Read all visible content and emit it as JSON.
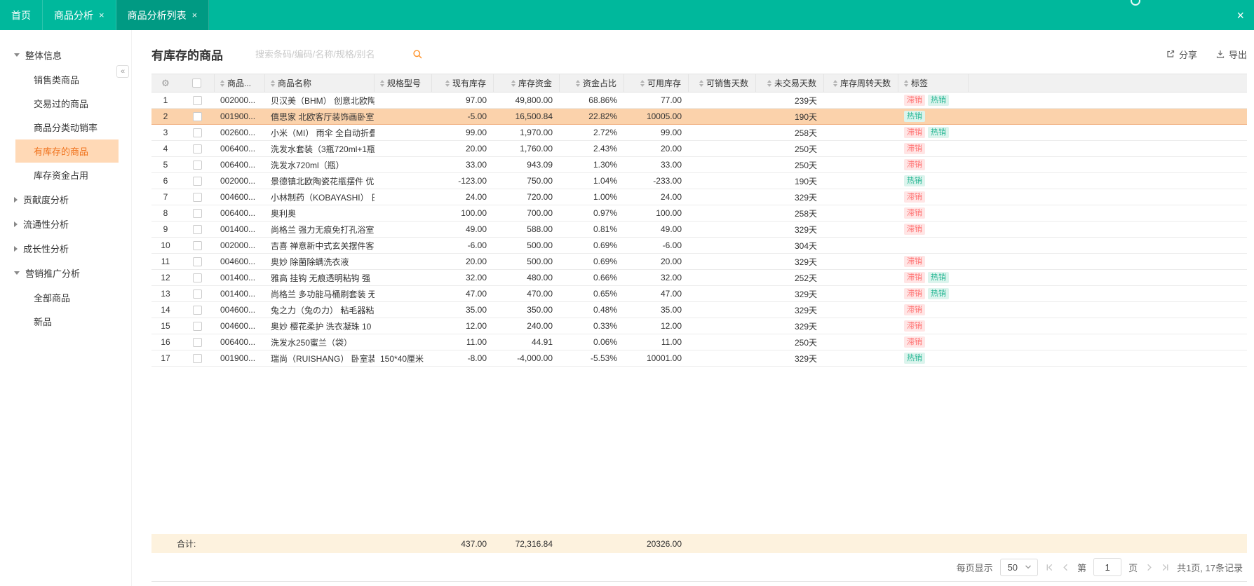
{
  "colors": {
    "accent": "#00b89c",
    "header-bg": "#f1f1f1",
    "sidebar-active-bg": "#ffd9b6",
    "active-text": "#f0711a",
    "row-selected-bg": "#fbd2ab",
    "summary-bg": "#fdf2de",
    "tag-stale-bg": "#ffe5e5",
    "tag-stale-text": "#ff7070",
    "tag-hot-bg": "#dcf4ed",
    "tag-hot-text": "#29b795",
    "search-icon": "#ff9228"
  },
  "icons": {
    "gear": "⚙"
  },
  "topbar": {
    "tabs": [
      {
        "label": "首页",
        "closable": false,
        "active": false
      },
      {
        "label": "商品分析",
        "closable": true,
        "active": false
      },
      {
        "label": "商品分析列表",
        "closable": true,
        "active": true
      }
    ],
    "tab_close": "×",
    "close_all": "×"
  },
  "sidebar": {
    "collapse_label": "«",
    "groups": [
      {
        "label": "整体信息",
        "expanded": true,
        "children": [
          {
            "label": "销售类商品",
            "active": false
          },
          {
            "label": "交易过的商品",
            "active": false
          },
          {
            "label": "商品分类动销率",
            "active": false
          },
          {
            "label": "有库存的商品",
            "active": true
          },
          {
            "label": "库存资金占用",
            "active": false
          }
        ]
      },
      {
        "label": "贡献度分析",
        "expanded": false,
        "children": []
      },
      {
        "label": "流通性分析",
        "expanded": false,
        "children": []
      },
      {
        "label": "成长性分析",
        "expanded": false,
        "children": []
      },
      {
        "label": "营销推广分析",
        "expanded": true,
        "children": [
          {
            "label": "全部商品",
            "active": false
          },
          {
            "label": "新品",
            "active": false
          }
        ]
      }
    ]
  },
  "main": {
    "title": "有库存的商品",
    "search_placeholder": "搜索条码/编码/名称/规格/别名",
    "share_label": "分享",
    "export_label": "导出"
  },
  "table": {
    "columns": [
      "商品...",
      "商品名称",
      "规格型号",
      "现有库存",
      "库存资金",
      "资金占比",
      "可用库存",
      "可销售天数",
      "未交易天数",
      "库存周转天数",
      "标签"
    ],
    "tag_types": {
      "滞销": "stale",
      "热销": "hot"
    },
    "rows": [
      {
        "index": "1",
        "code": "002000...",
        "name": "贝汉美（BHM） 创意北欧陶瓷",
        "spec": "",
        "stock": "97.00",
        "funds": "49,800.00",
        "ratio": "68.86%",
        "available": "77.00",
        "sell_days": "",
        "no_trade_days": "239天",
        "turnover_days": "",
        "tags": [
          "滞销",
          "热销"
        ],
        "selected": false
      },
      {
        "index": "2",
        "code": "001900...",
        "name": "僖思家 北欧客厅装饰画卧室",
        "spec": "",
        "stock": "-5.00",
        "funds": "16,500.84",
        "ratio": "22.82%",
        "available": "10005.00",
        "sell_days": "",
        "no_trade_days": "190天",
        "turnover_days": "",
        "tags": [
          "热销"
        ],
        "selected": true
      },
      {
        "index": "3",
        "code": "002600...",
        "name": "小米（MI） 雨伞 全自动折叠",
        "spec": "",
        "stock": "99.00",
        "funds": "1,970.00",
        "ratio": "2.72%",
        "available": "99.00",
        "sell_days": "",
        "no_trade_days": "258天",
        "turnover_days": "",
        "tags": [
          "滞销",
          "热销"
        ],
        "selected": false
      },
      {
        "index": "4",
        "code": "006400...",
        "name": "洗发水套装（3瓶720ml+1瓶",
        "spec": "",
        "stock": "20.00",
        "funds": "1,760.00",
        "ratio": "2.43%",
        "available": "20.00",
        "sell_days": "",
        "no_trade_days": "250天",
        "turnover_days": "",
        "tags": [
          "滞销"
        ],
        "selected": false
      },
      {
        "index": "5",
        "code": "006400...",
        "name": "洗发水720ml（瓶）",
        "spec": "",
        "stock": "33.00",
        "funds": "943.09",
        "ratio": "1.30%",
        "available": "33.00",
        "sell_days": "",
        "no_trade_days": "250天",
        "turnover_days": "",
        "tags": [
          "滞销"
        ],
        "selected": false
      },
      {
        "index": "6",
        "code": "002000...",
        "name": "景德镇北欧陶瓷花瓶摆件 优",
        "spec": "",
        "stock": "-123.00",
        "funds": "750.00",
        "ratio": "1.04%",
        "available": "-233.00",
        "sell_days": "",
        "no_trade_days": "190天",
        "turnover_days": "",
        "tags": [
          "热销"
        ],
        "selected": false
      },
      {
        "index": "7",
        "code": "004600...",
        "name": "小林制药（KOBAYASHI） 日",
        "spec": "",
        "stock": "24.00",
        "funds": "720.00",
        "ratio": "1.00%",
        "available": "24.00",
        "sell_days": "",
        "no_trade_days": "329天",
        "turnover_days": "",
        "tags": [
          "滞销"
        ],
        "selected": false
      },
      {
        "index": "8",
        "code": "006400...",
        "name": "奥利奥",
        "spec": "",
        "stock": "100.00",
        "funds": "700.00",
        "ratio": "0.97%",
        "available": "100.00",
        "sell_days": "",
        "no_trade_days": "258天",
        "turnover_days": "",
        "tags": [
          "滞销"
        ],
        "selected": false
      },
      {
        "index": "9",
        "code": "001400...",
        "name": "尚格兰 强力无痕免打孔浴室",
        "spec": "",
        "stock": "49.00",
        "funds": "588.00",
        "ratio": "0.81%",
        "available": "49.00",
        "sell_days": "",
        "no_trade_days": "329天",
        "turnover_days": "",
        "tags": [
          "滞销"
        ],
        "selected": false
      },
      {
        "index": "10",
        "code": "002000...",
        "name": "吉喜 禅意新中式玄关摆件客",
        "spec": "",
        "stock": "-6.00",
        "funds": "500.00",
        "ratio": "0.69%",
        "available": "-6.00",
        "sell_days": "",
        "no_trade_days": "304天",
        "turnover_days": "",
        "tags": [],
        "selected": false
      },
      {
        "index": "11",
        "code": "004600...",
        "name": "奥妙 除菌除螨洗衣液",
        "spec": "",
        "stock": "20.00",
        "funds": "500.00",
        "ratio": "0.69%",
        "available": "20.00",
        "sell_days": "",
        "no_trade_days": "329天",
        "turnover_days": "",
        "tags": [
          "滞销"
        ],
        "selected": false
      },
      {
        "index": "12",
        "code": "001400...",
        "name": "雅高 挂钩 无痕透明粘钩 强",
        "spec": "",
        "stock": "32.00",
        "funds": "480.00",
        "ratio": "0.66%",
        "available": "32.00",
        "sell_days": "",
        "no_trade_days": "252天",
        "turnover_days": "",
        "tags": [
          "滞销",
          "热销"
        ],
        "selected": false
      },
      {
        "index": "13",
        "code": "001400...",
        "name": "尚格兰 多功能马桶刷套装 无",
        "spec": "",
        "stock": "47.00",
        "funds": "470.00",
        "ratio": "0.65%",
        "available": "47.00",
        "sell_days": "",
        "no_trade_days": "329天",
        "turnover_days": "",
        "tags": [
          "滞销",
          "热销"
        ],
        "selected": false
      },
      {
        "index": "14",
        "code": "004600...",
        "name": "兔之力（兔の力） 粘毛器粘",
        "spec": "",
        "stock": "35.00",
        "funds": "350.00",
        "ratio": "0.48%",
        "available": "35.00",
        "sell_days": "",
        "no_trade_days": "329天",
        "turnover_days": "",
        "tags": [
          "滞销"
        ],
        "selected": false
      },
      {
        "index": "15",
        "code": "004600...",
        "name": "奥妙 樱花柔护 洗衣凝珠 10",
        "spec": "",
        "stock": "12.00",
        "funds": "240.00",
        "ratio": "0.33%",
        "available": "12.00",
        "sell_days": "",
        "no_trade_days": "329天",
        "turnover_days": "",
        "tags": [
          "滞销"
        ],
        "selected": false
      },
      {
        "index": "16",
        "code": "006400...",
        "name": "洗发水250蜜兰（袋）",
        "spec": "",
        "stock": "11.00",
        "funds": "44.91",
        "ratio": "0.06%",
        "available": "11.00",
        "sell_days": "",
        "no_trade_days": "250天",
        "turnover_days": "",
        "tags": [
          "滞销"
        ],
        "selected": false
      },
      {
        "index": "17",
        "code": "001900...",
        "name": "瑞尚（RUISHANG） 卧室装",
        "spec": "150*40厘米",
        "stock": "-8.00",
        "funds": "-4,000.00",
        "ratio": "-5.53%",
        "available": "10001.00",
        "sell_days": "",
        "no_trade_days": "329天",
        "turnover_days": "",
        "tags": [
          "热销"
        ],
        "selected": false
      }
    ]
  },
  "summary": {
    "label": "合计:",
    "current_stock": "437.00",
    "stock_funds": "72,316.84",
    "available_stock": "20326.00"
  },
  "pagination": {
    "page_size_label": "每页显示",
    "page_size": "50",
    "page_prefix": "第",
    "page_value": "1",
    "page_suffix": "页",
    "total_text": "共1页, 17条记录"
  }
}
